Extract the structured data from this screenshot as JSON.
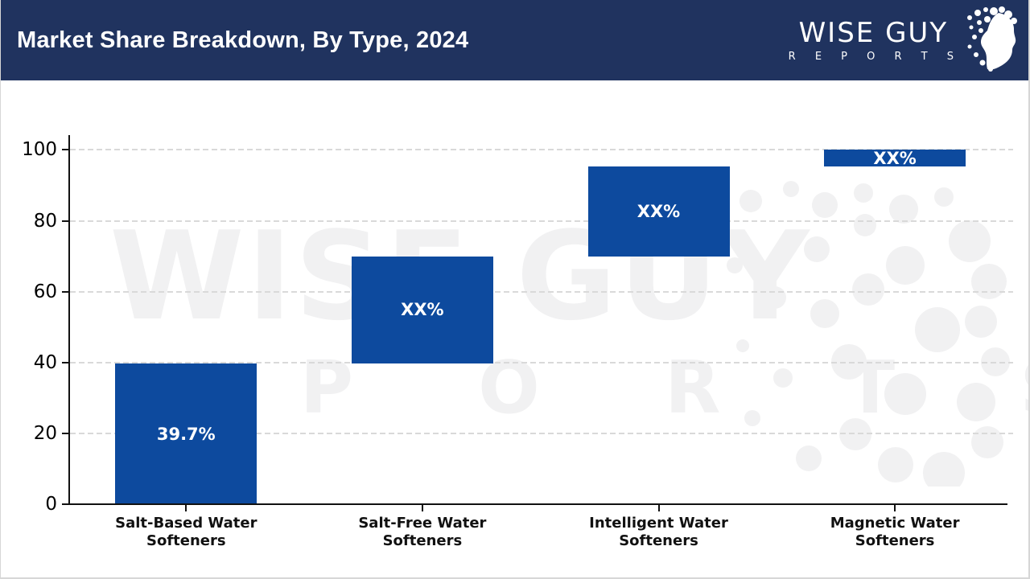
{
  "header": {
    "title": "Market Share Breakdown, By Type, 2024",
    "bg_color": "#20335f",
    "logo": {
      "line1": "WISE GUY",
      "line2": "R E P O R T S",
      "face_icon": "dotted-head-profile"
    }
  },
  "watermark": {
    "line1": "WISE GUY",
    "line2": "P O R T S",
    "color": "#f1f1f2",
    "face_icon": "dotted-head-profile"
  },
  "chart_data": {
    "type": "bar",
    "subtype": "waterfall",
    "title": "Market Share Breakdown, By Type, 2024",
    "categories": [
      "Salt-Based Water\nSofteners",
      "Salt-Free Water\nSofteners",
      "Intelligent Water\nSofteners",
      "Magnetic Water\nSofteners"
    ],
    "segments": [
      {
        "category": "Salt-Based Water Softeners",
        "start": 0,
        "end": 39.7,
        "label": "39.7%"
      },
      {
        "category": "Salt-Free Water Softeners",
        "start": 39.7,
        "end": 70,
        "label": "XX%"
      },
      {
        "category": "Intelligent Water Softeners",
        "start": 70,
        "end": 95.3,
        "label": "XX%"
      },
      {
        "category": "Magnetic Water Softeners",
        "start": 95.3,
        "end": 100,
        "label": "XX%"
      }
    ],
    "ylim": [
      0,
      100
    ],
    "yticks": [
      0,
      20,
      40,
      60,
      80,
      100
    ],
    "bar_color": "#0d4a9e",
    "bar_label_color": "#ffffff",
    "grid": "horizontal dashed",
    "legend": "none"
  }
}
